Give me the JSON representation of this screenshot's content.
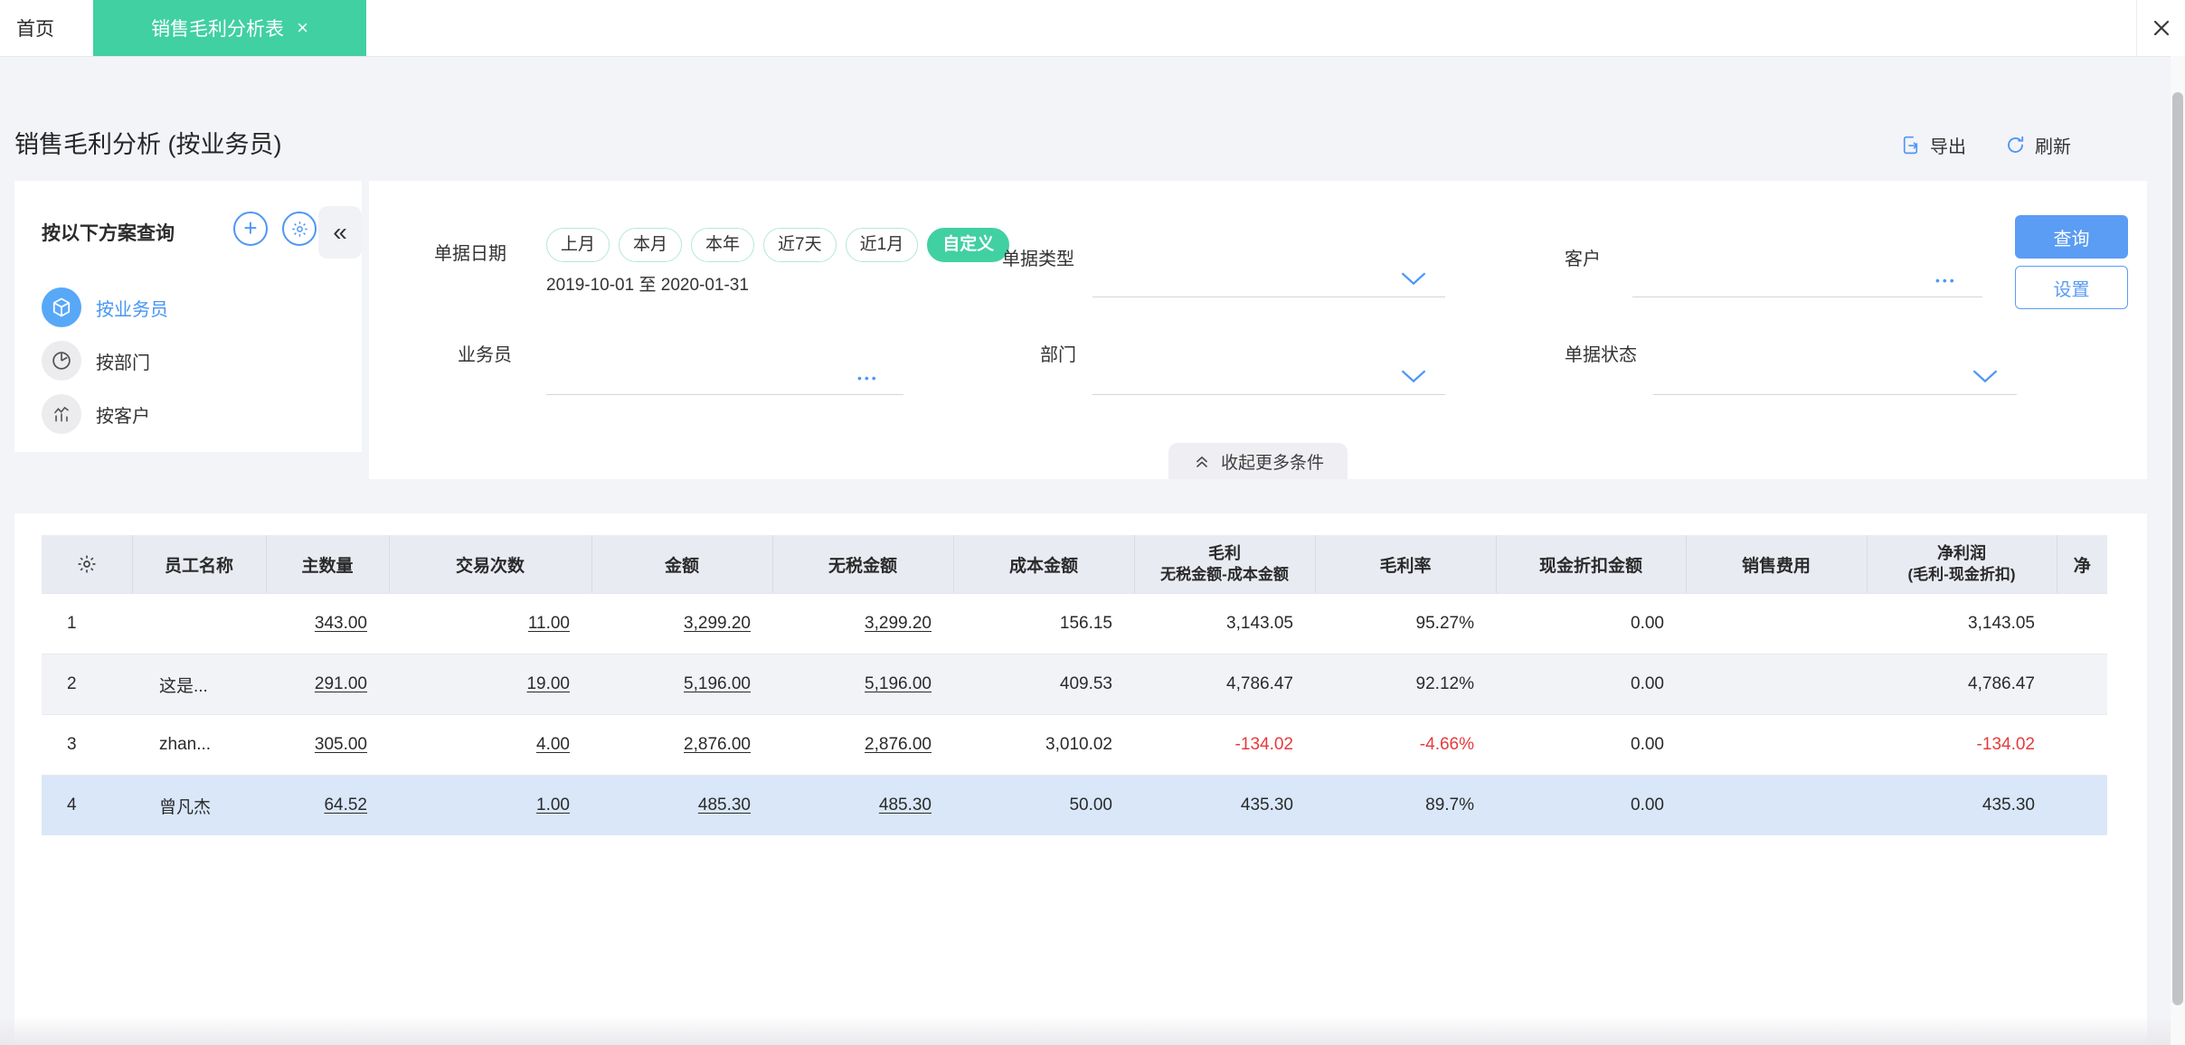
{
  "colors": {
    "accent_green": "#41d0a1",
    "accent_blue": "#4f96f5",
    "negative_red": "#e53b3b",
    "selected_row": "#d9e7f9",
    "header_bg": "#e9ebf3"
  },
  "tab_bar": {
    "home": "首页",
    "active_tab": "销售毛利分析表",
    "tab_close_icon": "×"
  },
  "page_header": {
    "title": "销售毛利分析 (按业务员)",
    "export_label": "导出",
    "refresh_label": "刷新"
  },
  "sidebar": {
    "title": "按以下方案查询",
    "collapse_icon": "«",
    "plus_icon": "+",
    "items": [
      {
        "label": "按业务员",
        "icon": "cube-icon",
        "active": true
      },
      {
        "label": "按部门",
        "icon": "pie-icon",
        "active": false
      },
      {
        "label": "按客户",
        "icon": "chart-icon",
        "active": false
      }
    ]
  },
  "filters": {
    "date_label": "单据日期",
    "date_quick_buttons": [
      "上月",
      "本月",
      "本年",
      "近7天",
      "近1月"
    ],
    "date_custom_button": "自定义",
    "date_range": "2019-10-01 至 2020-01-31",
    "doc_type_label": "单据类型",
    "customer_label": "客户",
    "salesperson_label": "业务员",
    "department_label": "部门",
    "doc_status_label": "单据状态",
    "query_button": "查询",
    "settings_button": "设置",
    "collapse_label": "收起更多条件"
  },
  "table": {
    "columns": [
      {
        "label": "",
        "icon": "gear-icon"
      },
      {
        "label": "员工名称"
      },
      {
        "label": "主数量"
      },
      {
        "label": "交易次数"
      },
      {
        "label": "金额"
      },
      {
        "label": "无税金额"
      },
      {
        "label": "成本金额"
      },
      {
        "label": "毛利",
        "sub": "无税金额-成本金额"
      },
      {
        "label": "毛利率"
      },
      {
        "label": "现金折扣金额"
      },
      {
        "label": "销售费用"
      },
      {
        "label": "净利润",
        "sub": "(毛利-现金折扣)"
      },
      {
        "label": "净"
      }
    ],
    "link_columns": [
      2,
      3,
      4,
      5
    ],
    "rows": [
      {
        "cells": [
          "1",
          "",
          "343.00",
          "11.00",
          "3,299.20",
          "3,299.20",
          "156.15",
          "3,143.05",
          "95.27%",
          "0.00",
          "",
          "3,143.05",
          ""
        ],
        "red_cells": [],
        "selected": false
      },
      {
        "cells": [
          "2",
          "这是...",
          "291.00",
          "19.00",
          "5,196.00",
          "5,196.00",
          "409.53",
          "4,786.47",
          "92.12%",
          "0.00",
          "",
          "4,786.47",
          ""
        ],
        "red_cells": [],
        "selected": false
      },
      {
        "cells": [
          "3",
          "zhan...",
          "305.00",
          "4.00",
          "2,876.00",
          "2,876.00",
          "3,010.02",
          "-134.02",
          "-4.66%",
          "0.00",
          "",
          "-134.02",
          ""
        ],
        "red_cells": [
          7,
          8,
          11
        ],
        "selected": false
      },
      {
        "cells": [
          "4",
          "曾凡杰",
          "64.52",
          "1.00",
          "485.30",
          "485.30",
          "50.00",
          "435.30",
          "89.7%",
          "0.00",
          "",
          "435.30",
          ""
        ],
        "red_cells": [],
        "selected": true
      }
    ]
  }
}
